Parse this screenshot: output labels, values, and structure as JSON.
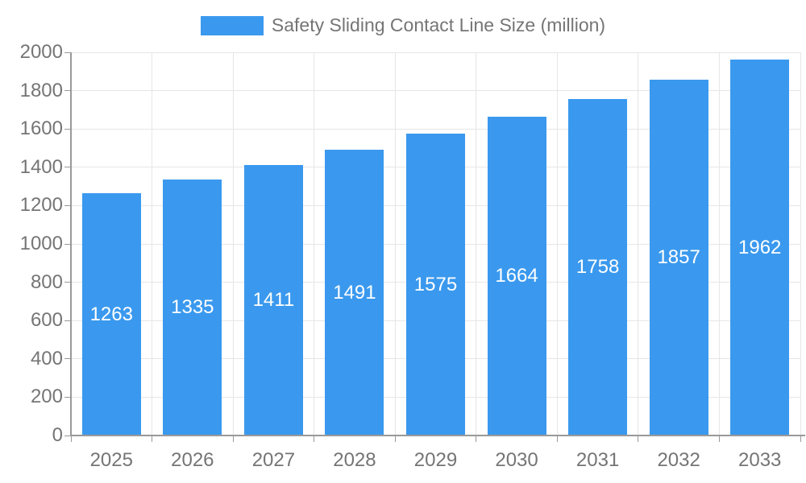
{
  "chart_data": {
    "type": "bar",
    "legend": "Safety Sliding Contact Line Size (million)",
    "series": [
      {
        "name": "Safety Sliding Contact Line Size (million)",
        "values": [
          1263,
          1335,
          1411,
          1491,
          1575,
          1664,
          1758,
          1857,
          1962
        ]
      }
    ],
    "categories": [
      "2025",
      "2026",
      "2027",
      "2028",
      "2029",
      "2030",
      "2031",
      "2032",
      "2033"
    ],
    "ytick_labels": [
      "0",
      "200",
      "400",
      "600",
      "800",
      "1000",
      "1200",
      "1400",
      "1600",
      "1800",
      "2000"
    ],
    "ylim": [
      0,
      2000
    ],
    "ytick_step": 200,
    "xlabel": "",
    "ylabel": "",
    "grid": true,
    "legend_position": "top-center",
    "bar_label_position": "inside-center",
    "colors": {
      "bar": "#3A99EE",
      "bar_label": "#FFFFFF",
      "axis_line": "#999999",
      "grid_line": "#E6E6E6",
      "tick_label": "#757575",
      "legend_text": "#757575",
      "background": "#FFFFFF"
    }
  }
}
